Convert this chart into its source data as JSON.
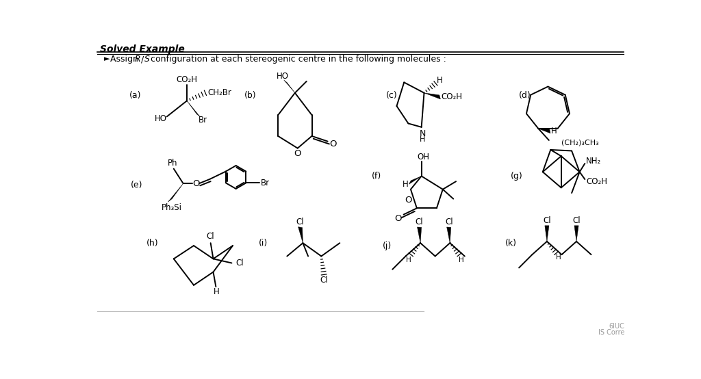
{
  "title": "Solved Example",
  "subtitle_prefix": "Assign ",
  "subtitle_R": "R",
  "subtitle_slash": " / ",
  "subtitle_S": "S",
  "subtitle_suffix": " configuration at each stereogenic centre in the following molecules :",
  "background_color": "#ffffff",
  "text_color": "#000000",
  "fig_width": 10.24,
  "fig_height": 5.54,
  "dpi": 100,
  "watermark_text1": "6IUC",
  "watermark_text2": "IS Corre"
}
